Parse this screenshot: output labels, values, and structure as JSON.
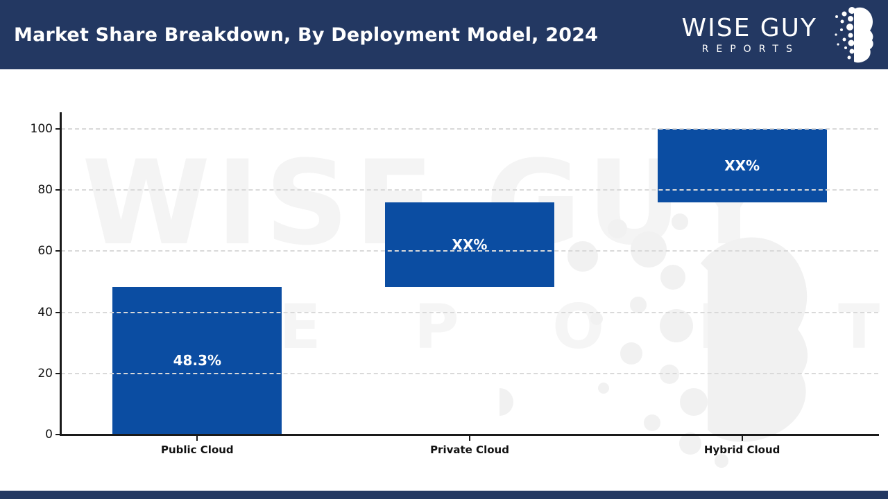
{
  "header": {
    "title": "Market Share Breakdown, By Deployment Model, 2024",
    "bg_color": "#233862",
    "logo": {
      "line1": "WISE GUY",
      "line2": "REPORTS"
    }
  },
  "watermark": {
    "line1": "WISE GUY",
    "line2": "R E P O R T S"
  },
  "chart_data": {
    "type": "bar",
    "subtype": "waterfall",
    "title": "Market Share Breakdown, By Deployment Model, 2024",
    "categories": [
      "Public Cloud",
      "Private Cloud",
      "Hybrid Cloud"
    ],
    "segments": [
      {
        "category": "Public Cloud",
        "start": 0,
        "end": 48.3,
        "label": "48.3%"
      },
      {
        "category": "Private Cloud",
        "start": 48.3,
        "end": 76,
        "label": "XX%"
      },
      {
        "category": "Hybrid Cloud",
        "start": 76,
        "end": 100,
        "label": "XX%"
      }
    ],
    "yticks": [
      0,
      20,
      40,
      60,
      80,
      100
    ],
    "ylim": [
      0,
      105
    ],
    "grid": "dashed-horizontal",
    "grid_color": "#d9d9d9",
    "bar_color": "#0b4da2",
    "bar_label_color": "#ffffff",
    "axis_color": "#1a1a1a",
    "legend": "none"
  },
  "footer": {
    "bg_color": "#233862"
  }
}
